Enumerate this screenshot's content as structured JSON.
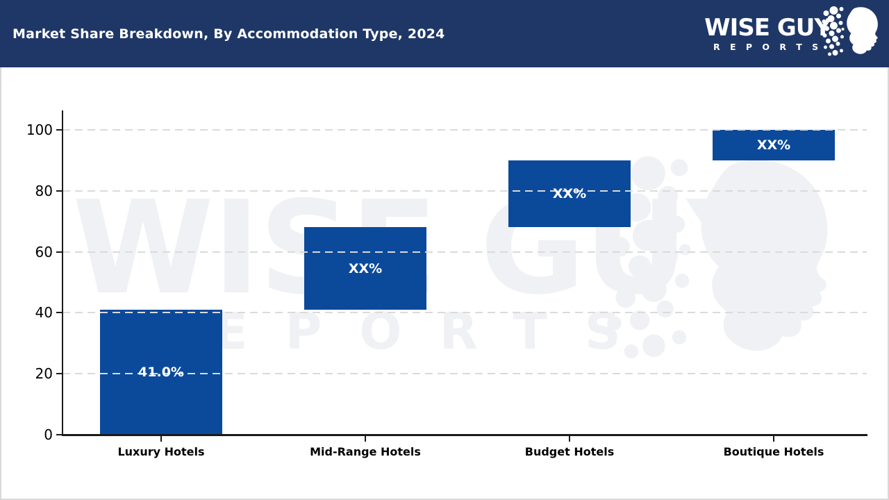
{
  "header": {
    "title": "Market Share Breakdown, By Accommodation Type, 2024",
    "logo": {
      "line1": "WISE GUY",
      "line2": "R E P O R T S"
    }
  },
  "watermark": {
    "line1": "WISE GUY",
    "line2": "REPORTS"
  },
  "chart_data": {
    "type": "bar",
    "subtype": "floating-waterfall",
    "title": "Market Share Breakdown, By Accommodation Type, 2024",
    "categories": [
      "Luxury Hotels",
      "Mid-Range Hotels",
      "Budget Hotels",
      "Boutique Hotels"
    ],
    "series": [
      {
        "name": "Market share",
        "segments": [
          {
            "category": "Luxury Hotels",
            "start": 0,
            "end": 41,
            "label": "41.0%"
          },
          {
            "category": "Mid-Range Hotels",
            "start": 41,
            "end": 68,
            "label": "XX%"
          },
          {
            "category": "Budget Hotels",
            "start": 68,
            "end": 90,
            "label": "XX%"
          },
          {
            "category": "Boutique Hotels",
            "start": 90,
            "end": 100,
            "label": "XX%"
          }
        ]
      }
    ],
    "xlabel": "",
    "ylabel": "",
    "yticks": [
      0,
      20,
      40,
      60,
      80,
      100
    ],
    "ylim": [
      0,
      106
    ],
    "grid": "horizontal-dashed",
    "legend": "none",
    "colors": {
      "bar": "#0b4a9b",
      "bar_label": "#ffffff",
      "axis": "#1a1a1a",
      "gridline": "#dadada",
      "header_bg": "#1f3767",
      "header_text": "#ffffff",
      "watermark": "#f0f1f4"
    }
  }
}
